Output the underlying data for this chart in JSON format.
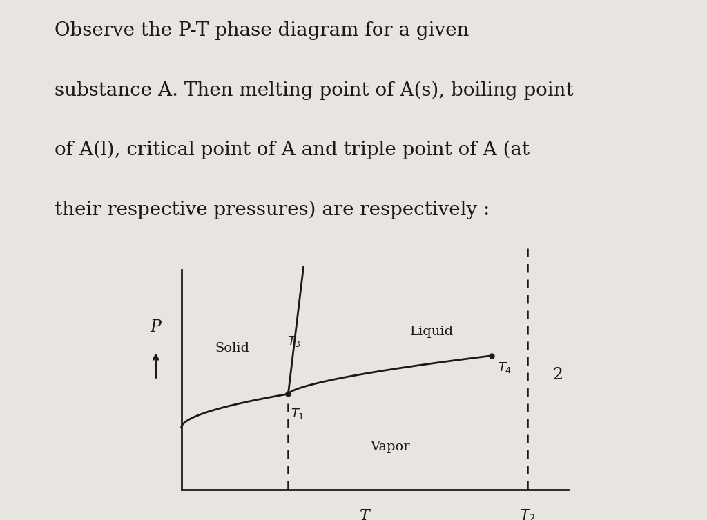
{
  "title_lines": [
    "Observe the P-T phase diagram for a given",
    "substance A. Then melting point of A(s), boiling point",
    "of A(l), critical point of A and triple point of A (at",
    "their respective pressures) are respectively :"
  ],
  "title_fontsize": 20,
  "title_color": "#1a1a1a",
  "bg_color": "#e8e5e0",
  "line_color": "#1a1a1a",
  "line_width": 2.0,
  "dashed_color": "#1a1a1a",
  "dashed_linewidth": 1.8,
  "triple_point": [
    0.33,
    0.44
  ],
  "critical_point": [
    0.73,
    0.6
  ],
  "phase_label_fontsize": 14,
  "point_label_fontsize": 13,
  "axis_fontsize": 15
}
